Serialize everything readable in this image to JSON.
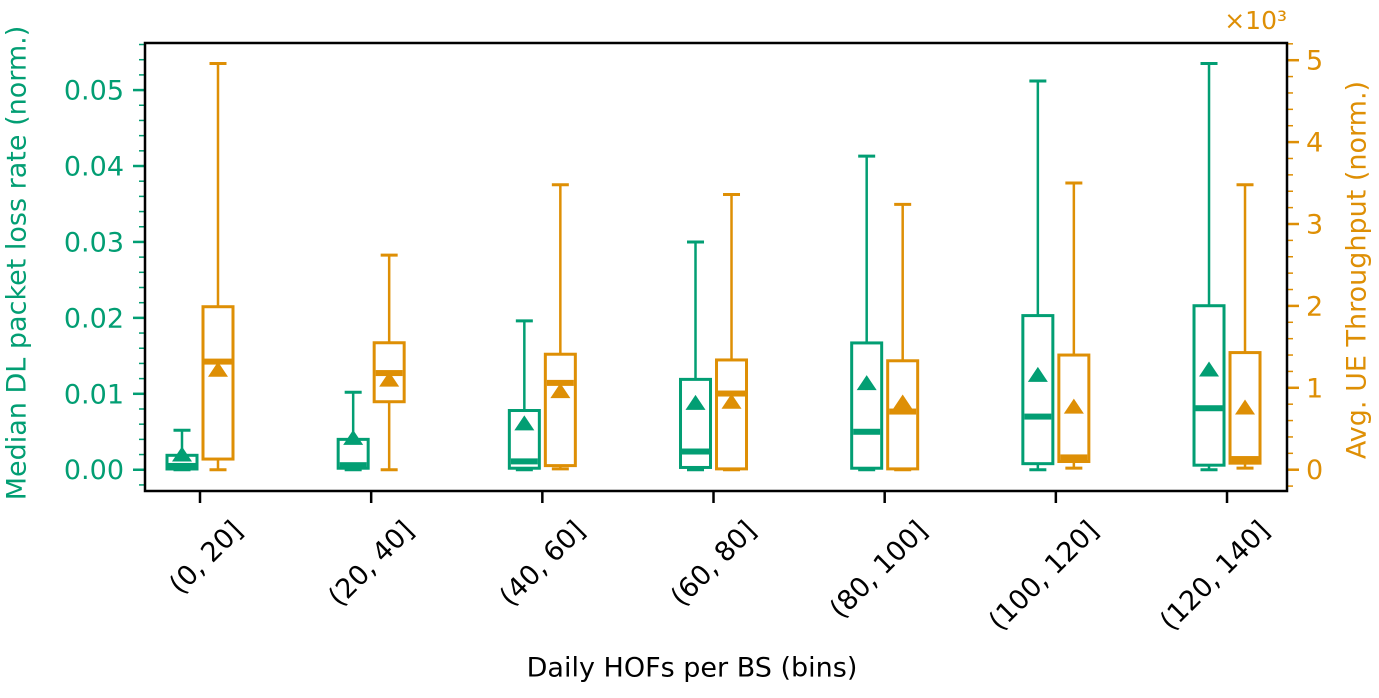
{
  "chart_data": {
    "type": "boxplot",
    "subtype": "grouped-dual-axis-boxplot",
    "title": "",
    "xlabel": "Daily HOFs per BS (bins)",
    "categories": [
      "(0, 20]",
      "(20, 40]",
      "(40, 60]",
      "(60, 80]",
      "(80, 100]",
      "(100, 120]",
      "(120, 140]"
    ],
    "grid": false,
    "legend": "none",
    "mean_marker": "filled-triangle-up",
    "left_axis": {
      "label": "Median DL packet loss rate (norm.)",
      "color": "#029e73",
      "tick_labels": [
        "0.00",
        "0.01",
        "0.02",
        "0.03",
        "0.04",
        "0.05"
      ],
      "tick_values": [
        0.0,
        0.01,
        0.02,
        0.03,
        0.04,
        0.05
      ],
      "minor_step": 0.002,
      "range": [
        -0.0028,
        0.0562
      ]
    },
    "right_axis": {
      "label": "Avg. UE Throughput (norm.)",
      "color": "#de8f05",
      "offset_text": "×10³",
      "tick_labels": [
        "0",
        "1",
        "2",
        "3",
        "4",
        "5"
      ],
      "tick_values": [
        0,
        1,
        2,
        3,
        4,
        5
      ],
      "minor_step": 0.2,
      "range": [
        -0.26,
        5.21
      ]
    },
    "series": [
      {
        "name": "Median DL packet loss rate (norm.)",
        "axis": "left",
        "color": "#029e73",
        "boxes": [
          {
            "whislo": 0.0,
            "q1": 0.0001,
            "med": 0.0005,
            "q3": 0.0019,
            "whishi": 0.0052,
            "mean": 0.002
          },
          {
            "whislo": 0.0,
            "q1": 0.0002,
            "med": 0.0006,
            "q3": 0.004,
            "whishi": 0.0102,
            "mean": 0.0042
          },
          {
            "whislo": 0.0,
            "q1": 0.0002,
            "med": 0.0011,
            "q3": 0.0078,
            "whishi": 0.0196,
            "mean": 0.0061
          },
          {
            "whislo": 0.0,
            "q1": 0.0003,
            "med": 0.0024,
            "q3": 0.0119,
            "whishi": 0.03,
            "mean": 0.0088
          },
          {
            "whislo": 0.0,
            "q1": 0.0002,
            "med": 0.005,
            "q3": 0.0167,
            "whishi": 0.0413,
            "mean": 0.0114
          },
          {
            "whislo": 0.0,
            "q1": 0.0008,
            "med": 0.007,
            "q3": 0.0203,
            "whishi": 0.0512,
            "mean": 0.0125
          },
          {
            "whislo": 0.0,
            "q1": 0.0006,
            "med": 0.0081,
            "q3": 0.0216,
            "whishi": 0.0535,
            "mean": 0.0132
          }
        ]
      },
      {
        "name": "Avg. UE Throughput (norm.), values in thousands",
        "axis": "right",
        "color": "#de8f05",
        "boxes": [
          {
            "whislo": 0.0,
            "q1": 0.13,
            "med": 1.32,
            "q3": 1.99,
            "whishi": 4.96,
            "mean": 1.22
          },
          {
            "whislo": 0.0,
            "q1": 0.83,
            "med": 1.18,
            "q3": 1.55,
            "whishi": 2.62,
            "mean": 1.1
          },
          {
            "whislo": 0.01,
            "q1": 0.05,
            "med": 1.06,
            "q3": 1.41,
            "whishi": 3.48,
            "mean": 0.96
          },
          {
            "whislo": 0.0,
            "q1": 0.01,
            "med": 0.93,
            "q3": 1.34,
            "whishi": 3.36,
            "mean": 0.83
          },
          {
            "whislo": 0.0,
            "q1": 0.01,
            "med": 0.71,
            "q3": 1.33,
            "whishi": 3.24,
            "mean": 0.82
          },
          {
            "whislo": 0.02,
            "q1": 0.1,
            "med": 0.15,
            "q3": 1.4,
            "whishi": 3.5,
            "mean": 0.77
          },
          {
            "whislo": 0.02,
            "q1": 0.08,
            "med": 0.13,
            "q3": 1.43,
            "whishi": 3.48,
            "mean": 0.76
          }
        ]
      }
    ]
  }
}
